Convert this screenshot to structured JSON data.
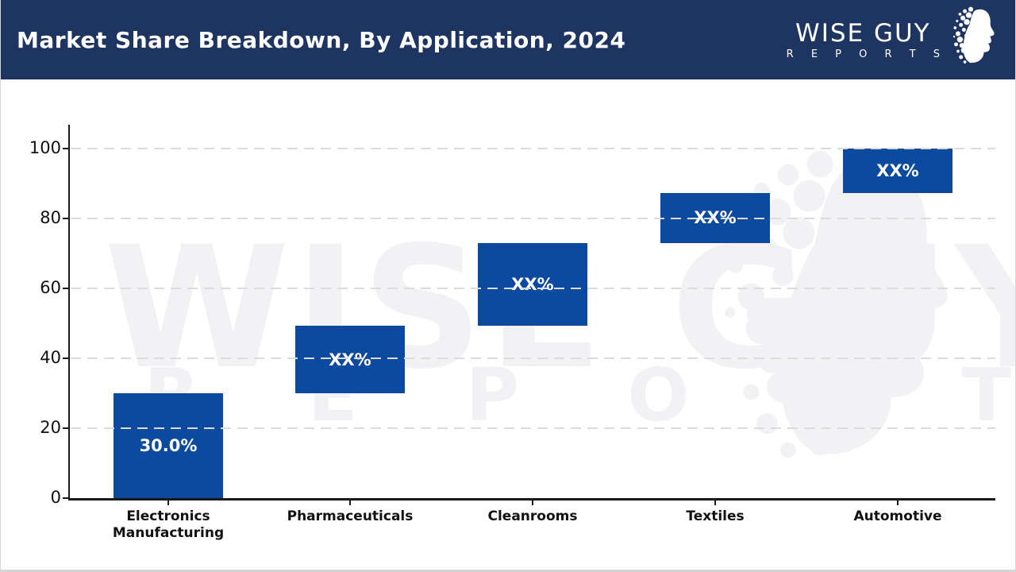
{
  "header": {
    "title": "Market Share Breakdown, By Application, 2024",
    "brand": {
      "line1": "WISE GUY",
      "line2": "REPORTS"
    }
  },
  "watermark": {
    "line1": "WISE GUY",
    "line2": "REPORTS"
  },
  "colors": {
    "header_bg": "#1f3561",
    "bar_fill": "#0b4a9f",
    "bar_label_text": "#ffffff",
    "axis": "#1a1a1a",
    "gridline": "#dcdcdc",
    "watermark": "#f2f2f4"
  },
  "chart_data": {
    "type": "bar",
    "subtype": "waterfall",
    "title": "Market Share Breakdown, By Application, 2024",
    "xlabel": "",
    "ylabel": "",
    "ylim": [
      0,
      100
    ],
    "yticks": [
      0,
      20,
      40,
      60,
      80,
      100
    ],
    "grid": "horizontal-dashed",
    "legend": "none",
    "categories": [
      "Electronics\nManufacturing",
      "Pharmaceuticals",
      "Cleanrooms",
      "Textiles",
      "Automotive"
    ],
    "segments": [
      {
        "category": "Electronics\nManufacturing",
        "start": 0,
        "end": 30,
        "value_estimate": 30.0,
        "label": "30.0%"
      },
      {
        "category": "Pharmaceuticals",
        "start": 30,
        "end": 49.3,
        "value_estimate": 19.3,
        "label": "XX%"
      },
      {
        "category": "Cleanrooms",
        "start": 49.3,
        "end": 73,
        "value_estimate": 23.7,
        "label": "XX%"
      },
      {
        "category": "Textiles",
        "start": 73,
        "end": 87.3,
        "value_estimate": 14.3,
        "label": "XX%"
      },
      {
        "category": "Automotive",
        "start": 87.3,
        "end": 100,
        "value_estimate": 12.7,
        "label": "XX%"
      }
    ]
  }
}
